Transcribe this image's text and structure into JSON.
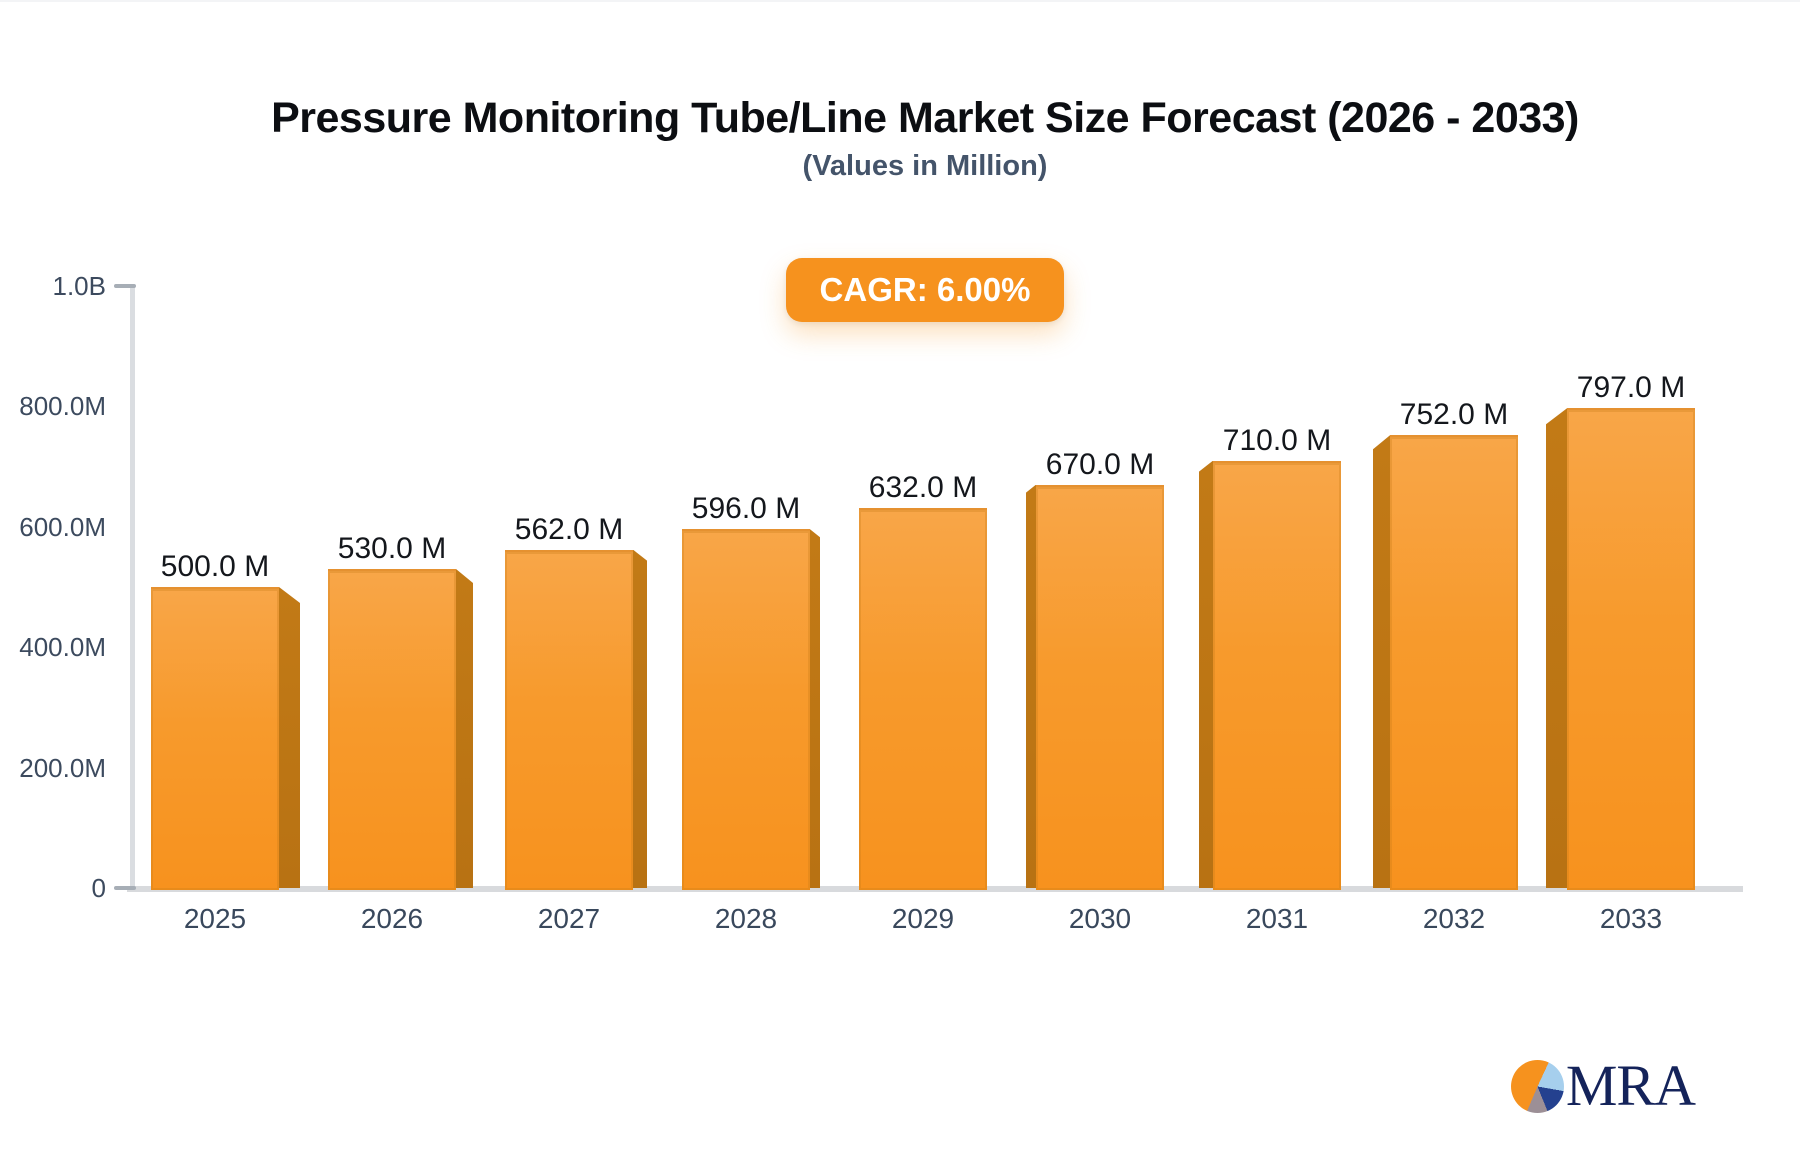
{
  "title": "Pressure Monitoring Tube/Line Market Size Forecast (2026 - 2033)",
  "subtitle": "(Values in Million)",
  "badge": {
    "label": "CAGR: 6.00%"
  },
  "chart_data": {
    "type": "bar",
    "categories": [
      "2025",
      "2026",
      "2027",
      "2028",
      "2029",
      "2030",
      "2031",
      "2032",
      "2033"
    ],
    "values": [
      500,
      530,
      562,
      596,
      632,
      670,
      710,
      752,
      797
    ],
    "value_labels": [
      "500.0 M",
      "530.0 M",
      "562.0 M",
      "596.0 M",
      "632.0 M",
      "670.0 M",
      "710.0 M",
      "752.0 M",
      "797.0 M"
    ],
    "title": "Pressure Monitoring Tube/Line Market Size Forecast (2026 - 2033)",
    "subtitle": "(Values in Million)",
    "annotation": "CAGR: 6.00%",
    "xlabel": "",
    "ylabel": "",
    "ylim": [
      0,
      1000
    ],
    "yticks": [
      {
        "label": "1.0B",
        "value": 1000,
        "dash": true
      },
      {
        "label": "800.0M",
        "value": 800,
        "dash": false
      },
      {
        "label": "600.0M",
        "value": 600,
        "dash": false
      },
      {
        "label": "400.0M",
        "value": 400,
        "dash": false
      },
      {
        "label": "200.0M",
        "value": 200,
        "dash": false
      },
      {
        "label": "0",
        "value": 0,
        "dash": true
      }
    ],
    "grid": false,
    "legend": false,
    "bar_color": "#F7941E",
    "bar_side_color": "#BC7415",
    "axis_color": "#DADDE1",
    "style": "pseudo-3d, side faces point away from center bar (2029)"
  },
  "logo": {
    "text": "MRA",
    "pie_colors": [
      "#F6921E",
      "#A6CFED",
      "#24418F",
      "#9C8F96"
    ]
  },
  "colors": {
    "accent_orange": "#F6921E",
    "title_text": "#0C0E12",
    "subtitle_text": "#44546A",
    "axis_label_text": "#3C4A5E",
    "value_label_text": "#14171C",
    "logo_navy": "#14235A"
  }
}
